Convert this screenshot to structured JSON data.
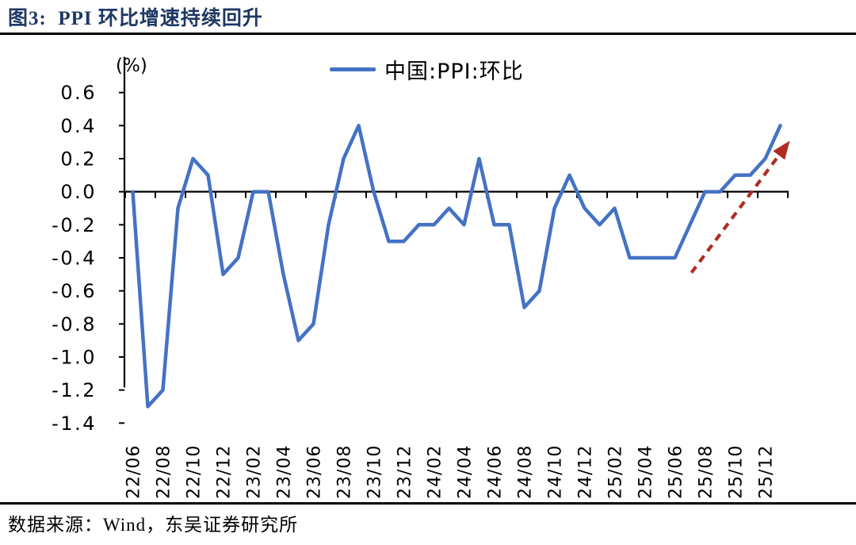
{
  "header": {
    "title": "图3:  PPI 环比增速持续回升",
    "title_color": "#1F3864"
  },
  "chart_data": {
    "type": "line",
    "series_name": "中国:PPI:环比",
    "unit_label": "(%)",
    "x_start": "22/06",
    "x_frequency": "monthly",
    "x_labels_shown": [
      "22/06",
      "22/08",
      "22/10",
      "22/12",
      "23/02",
      "23/04",
      "23/06",
      "23/08",
      "23/10",
      "23/12",
      "24/02",
      "24/04",
      "24/06",
      "24/08",
      "24/10",
      "24/12",
      "25/02",
      "25/04",
      "25/06",
      "25/08",
      "25/10",
      "25/12"
    ],
    "values": [
      0.0,
      -1.3,
      -1.2,
      -0.1,
      0.2,
      0.1,
      -0.5,
      -0.4,
      0.0,
      0.0,
      -0.5,
      -0.9,
      -0.8,
      -0.2,
      0.2,
      0.4,
      0.0,
      -0.3,
      -0.3,
      -0.2,
      -0.2,
      -0.1,
      -0.2,
      0.2,
      -0.2,
      -0.2,
      -0.7,
      -0.6,
      -0.1,
      0.1,
      -0.1,
      -0.2,
      -0.1,
      -0.4,
      -0.4,
      -0.4,
      -0.4,
      -0.2,
      0.0,
      0.0,
      0.1,
      0.1,
      0.2,
      0.4
    ],
    "ylim": [
      -1.4,
      0.6
    ],
    "ytick_step": 0.2,
    "ytick_labels": [
      "0.6",
      "0.4",
      "0.2",
      "0.0",
      "-0.2",
      "-0.4",
      "-0.6",
      "-0.8",
      "-1.0",
      "-1.2",
      "-1.4"
    ],
    "grid": "off",
    "legend_position": "top-center",
    "line_color": "#4472C4",
    "axis_color": "#000000",
    "annotation_arrow": {
      "style": "dashed",
      "color": "#B02C21",
      "from_month_index": 37.1,
      "from_value": -0.49,
      "to_month_index": 43.4,
      "to_value": 0.28
    }
  },
  "footer": {
    "source": "数据来源：Wind，东吴证券研究所"
  }
}
